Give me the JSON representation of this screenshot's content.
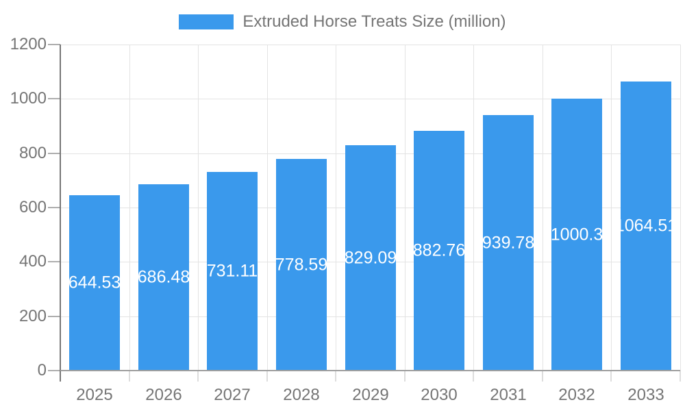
{
  "legend": {
    "label": "Extruded Horse Treats Size (million)"
  },
  "chart_data": {
    "type": "bar",
    "title": "Extruded Horse Treats Size (million)",
    "series_name": "Extruded Horse Treats Size (million)",
    "categories": [
      "2025",
      "2026",
      "2027",
      "2028",
      "2029",
      "2030",
      "2031",
      "2032",
      "2033"
    ],
    "values": [
      644.53,
      686.48,
      731.11,
      778.59,
      829.09,
      882.76,
      939.78,
      1000.3,
      1064.51
    ],
    "bar_labels": [
      "644.53",
      "686.48",
      "731.11",
      "778.59",
      "829.09",
      "882.76",
      "939.78",
      "1000.3",
      "1064.51"
    ],
    "xlabel": "",
    "ylabel": "",
    "ylim": [
      0,
      1200
    ],
    "yticks": [
      0,
      200,
      400,
      600,
      800,
      1000,
      1200
    ],
    "grid": true,
    "legend_position": "top",
    "colors": {
      "bar": "#3a99ec",
      "value_label": "#ffffff",
      "axis_label": "#757575",
      "gridline": "#e3e3e3",
      "y_axis_line": "#757575",
      "x_axis_line": "#9e9e9e",
      "y_tick": "#aeaeae",
      "x_tick": "#dddddd"
    }
  }
}
